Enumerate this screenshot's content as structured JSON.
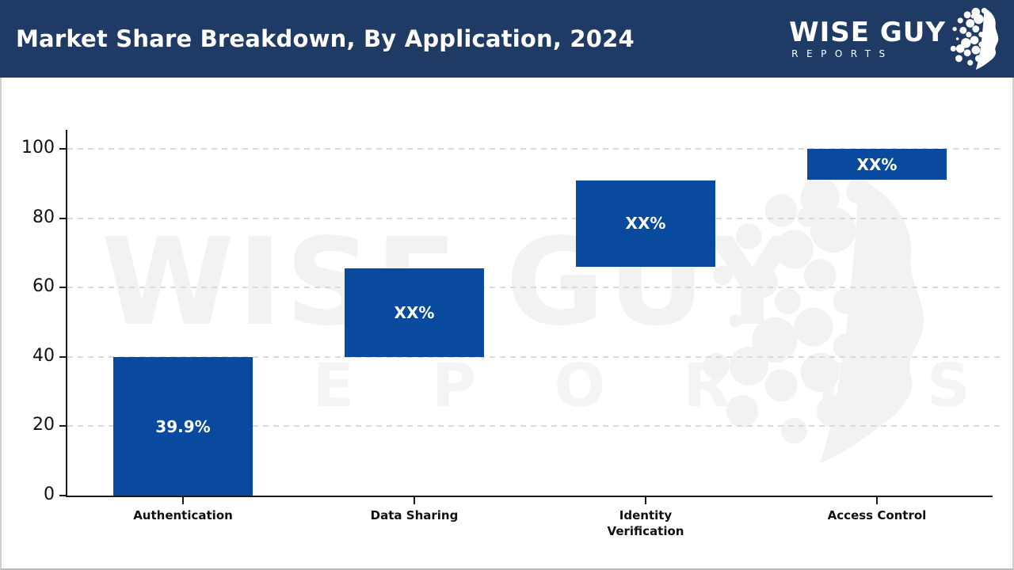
{
  "header": {
    "title": "Market Share Breakdown, By Application, 2024",
    "logo": {
      "name": "WISE GUY",
      "subtitle": "REPORTS"
    }
  },
  "watermark": {
    "line1": "WISE GUY",
    "line2": "R E P O R T S"
  },
  "colors": {
    "header_bg": "#203a66",
    "bar": "#0a4a9e",
    "bar_label": "#ffffff",
    "grid": "#dadada",
    "axis": "#1a1a1a",
    "watermark": "#f2f2f2",
    "frame_border": "#cfcfcf"
  },
  "chart_data": {
    "type": "bar",
    "subtype": "waterfall-floating-segments",
    "title": "Market Share Breakdown, By Application, 2024",
    "categories": [
      "Authentication",
      "Data Sharing",
      "Identity Verification",
      "Access Control"
    ],
    "segments": [
      {
        "category": "Authentication",
        "start": 0,
        "end": 39.9,
        "label": "39.9%"
      },
      {
        "category": "Data Sharing",
        "start": 40,
        "end": 65.6,
        "label": "XX%"
      },
      {
        "category": "Identity Verification",
        "start": 66,
        "end": 90.9,
        "label": "XX%"
      },
      {
        "category": "Access Control",
        "start": 91,
        "end": 100,
        "label": "XX%"
      }
    ],
    "yticks": [
      0,
      20,
      40,
      60,
      80,
      100
    ],
    "ylim": [
      0,
      105
    ],
    "xlabel": "",
    "ylabel": "",
    "grid": "horizontal-dashed",
    "legend": "none",
    "bar_color": "#0a4a9e",
    "value_unit": "%"
  }
}
